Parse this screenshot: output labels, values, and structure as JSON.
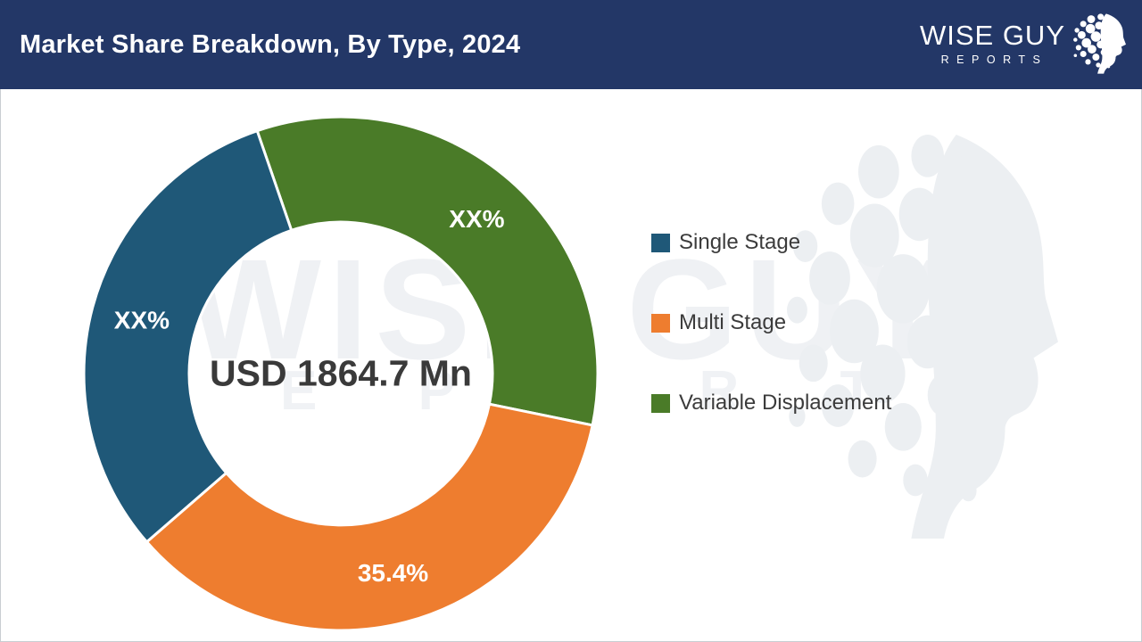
{
  "header": {
    "title": "Market Share Breakdown, By Type, 2024",
    "logo_line1": "WISE GUY",
    "logo_line2": "REPORTS"
  },
  "colors": {
    "header_bg": "#233767",
    "single_stage_blue": "#1F5878",
    "multi_stage_orange": "#EE7D2F",
    "variable_displacement_green": "#4A7B28",
    "center_text": "#3A3A3A",
    "legend_text": "#3B3B3B",
    "watermark_gray": "#EFF1F4",
    "page_border": "#C9CDD2"
  },
  "chart_data": {
    "type": "donut",
    "title": "Market Share Breakdown, By Type, 2024",
    "center_label": "USD 1864.7 Mn",
    "start_angle_deg": -19,
    "hole_radius_ratio": 0.59,
    "legend_position": "right",
    "segments_clockwise": [
      {
        "name": "Variable Displacement",
        "display_label": "XX%",
        "share_pct": 33.5,
        "color": "#4A7B28"
      },
      {
        "name": "Multi Stage",
        "display_label": "35.4%",
        "share_pct": 35.4,
        "color": "#EE7D2F"
      },
      {
        "name": "Single Stage",
        "display_label": "XX%",
        "share_pct": 31.1,
        "color": "#1F5878"
      }
    ]
  },
  "legend": [
    {
      "label": "Single Stage",
      "color": "#1F5878"
    },
    {
      "label": "Multi Stage",
      "color": "#EE7D2F"
    },
    {
      "label": "Variable Displacement",
      "color": "#4A7B28"
    }
  ],
  "watermark": {
    "line1": "WISE GUY",
    "line2": "R E P O R T S"
  }
}
